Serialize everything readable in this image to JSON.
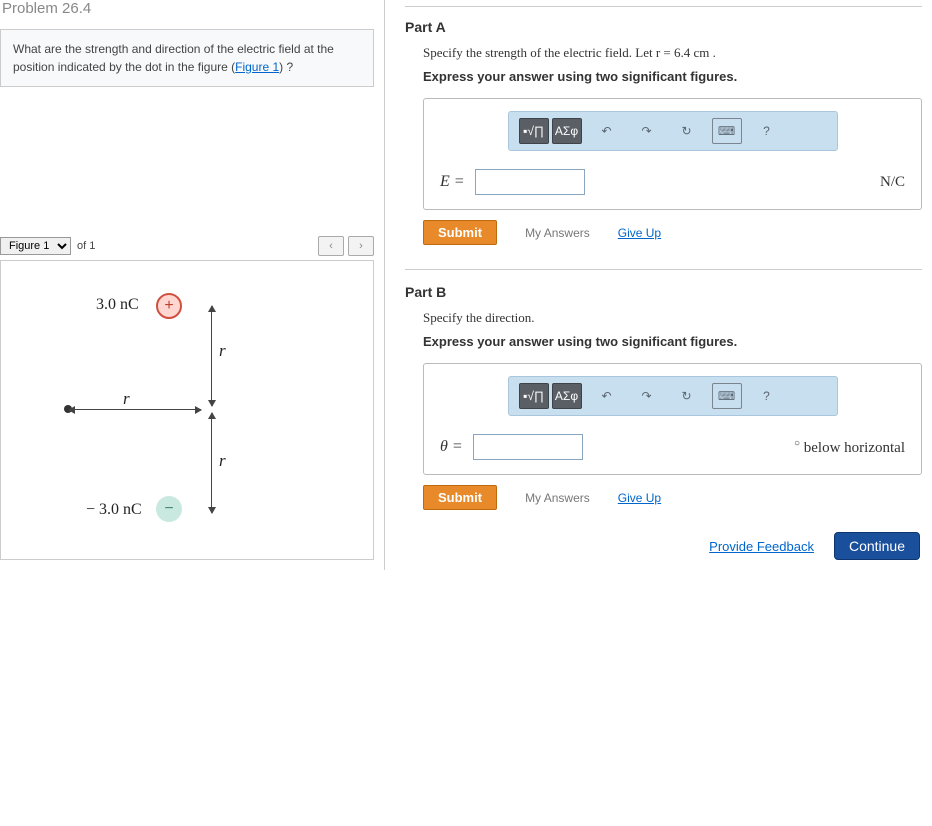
{
  "problem": {
    "title": "Problem 26.4",
    "question_text": "What are the strength and direction of the electric field at the position indicated by the dot in the figure (",
    "figure_link": "Figure 1",
    "question_tail": ") ?"
  },
  "figure": {
    "selector_label": "Figure 1",
    "of_text": "of 1",
    "pos_charge_label": "3.0 nC",
    "pos_charge_sign": "+",
    "neg_charge_label": "− 3.0 nC",
    "neg_charge_sign": "−",
    "r_label": "r"
  },
  "partA": {
    "title": "Part A",
    "desc": "Specify the strength of the electric field. Let r = 6.4 cm .",
    "instruction": "Express your answer using two significant figures.",
    "variable": "E =",
    "unit": "N/C",
    "submit": "Submit",
    "my_answers": "My Answers",
    "give_up": "Give Up"
  },
  "partB": {
    "title": "Part B",
    "desc": "Specify the direction.",
    "instruction": "Express your answer using two significant figures.",
    "variable": "θ =",
    "unit_suffix": "below horizontal",
    "submit": "Submit",
    "my_answers": "My Answers",
    "give_up": "Give Up"
  },
  "toolbar": {
    "templates": "▪√∏",
    "greek": "ΑΣφ",
    "undo": "↶",
    "redo": "↷",
    "reset": "↻",
    "keyboard": "⌨",
    "help": "?"
  },
  "footer": {
    "feedback": "Provide Feedback",
    "continue": "Continue"
  },
  "colors": {
    "accent_orange": "#e88a2a",
    "accent_blue": "#1a4f9c",
    "toolbar_bg": "#c8dff0",
    "link": "#0066cc"
  }
}
